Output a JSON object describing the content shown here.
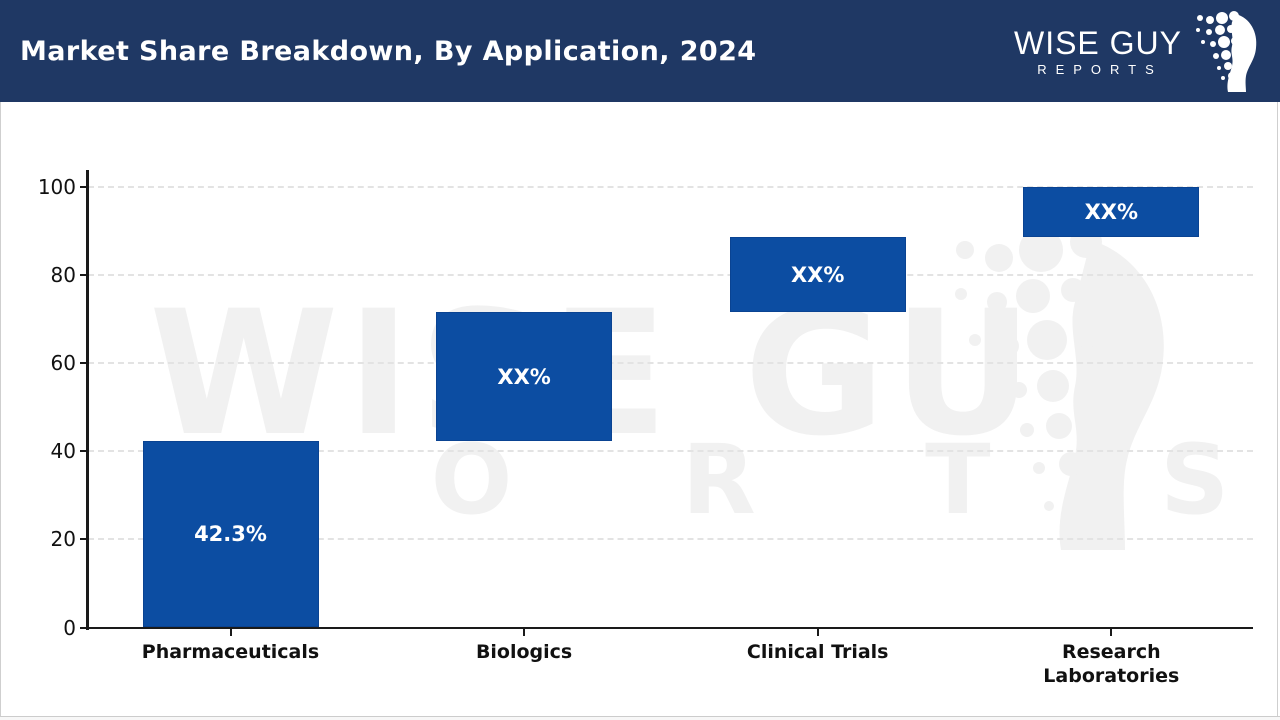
{
  "header": {
    "title": "Market Share Breakdown, By Application, 2024",
    "bg_color": "#1f3864",
    "brand_name": "WISE GUY",
    "brand_sub": "REPORTS"
  },
  "watermark": {
    "line1": "WISE GU",
    "line2": "P O R T S"
  },
  "chart_data": {
    "type": "bar",
    "subtype": "waterfall",
    "title": "Market Share Breakdown, By Application, 2024",
    "categories": [
      "Pharmaceuticals",
      "Biologics",
      "Clinical Trials",
      "Research\nLaboratories"
    ],
    "segments": [
      {
        "category": "Pharmaceuticals",
        "start": 0,
        "end": 42.3,
        "value": 42.3,
        "label": "42.3%"
      },
      {
        "category": "Biologics",
        "start": 42.3,
        "end": 71.5,
        "value": 29.2,
        "label": "XX%"
      },
      {
        "category": "Clinical Trials",
        "start": 71.5,
        "end": 88.5,
        "value": 17.0,
        "label": "XX%"
      },
      {
        "category": "Research\nLaboratories",
        "start": 88.5,
        "end": 100,
        "value": 11.5,
        "label": "XX%"
      }
    ],
    "y_ticks": [
      0,
      20,
      40,
      60,
      80,
      100
    ],
    "ylim": [
      0,
      105
    ],
    "xlabel": "",
    "ylabel": "",
    "bar_color": "#0c4da2",
    "label_color": "#ffffff",
    "grid": true,
    "grid_style": "dashed",
    "legend": false
  }
}
